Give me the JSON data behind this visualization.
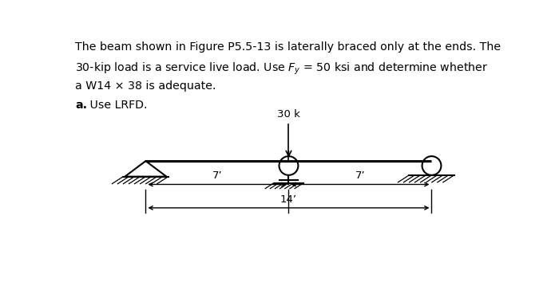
{
  "line1": "The beam shown in Figure P5.5-13 is laterally braced only at the ends. The",
  "line2": "30-kip load is a service live load. Use $F_y$ = 50 ksi and determine whether",
  "line3": "a W14 × 38 is adequate.",
  "line4a": "a.",
  "line4b": " Use LRFD.",
  "load_label": "30 k",
  "dim1_label": "7’",
  "dim2_label": "7’",
  "dim3_label": "14’",
  "bg_color": "#ffffff",
  "text_color": "#000000",
  "beam_color": "#000000",
  "bxl": 0.175,
  "bxr": 0.835,
  "bxm": 0.505,
  "by": 0.435
}
